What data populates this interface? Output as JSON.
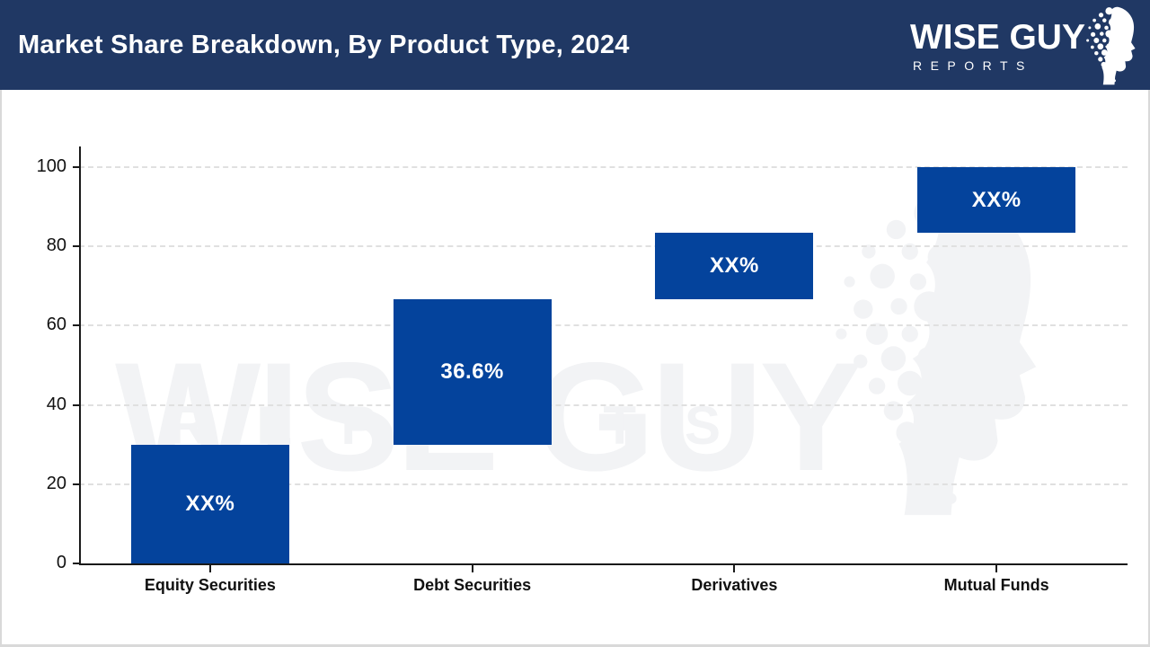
{
  "header": {
    "title": "Market Share Breakdown, By Product Type, 2024",
    "logo": {
      "line1": "WISE GUY",
      "line2": "REPORTS"
    }
  },
  "watermark": {
    "line1": "WISE GUY",
    "line2": "REPORTS"
  },
  "colors": {
    "header_bg": "#203864",
    "bar": "#04439C",
    "bar_label": "#ffffff",
    "grid": "#e0e0e0",
    "axis": "#1a1a1a",
    "tick_label": "#111111",
    "watermark": "#f2f3f5",
    "frame_border": "#d9d9d9"
  },
  "chart_data": {
    "type": "bar",
    "variant": "floating-waterfall",
    "title": "Market Share Breakdown, By Product Type, 2024",
    "categories": [
      "Equity Securities",
      "Debt Securities",
      "Derivatives",
      "Mutual Funds"
    ],
    "bars": [
      {
        "category": "Equity Securities",
        "start": 0,
        "end": 30,
        "value_label": "XX%"
      },
      {
        "category": "Debt Securities",
        "start": 30,
        "end": 66.6,
        "value_label": "36.6%"
      },
      {
        "category": "Derivatives",
        "start": 66.6,
        "end": 83.4,
        "value_label": "XX%"
      },
      {
        "category": "Mutual Funds",
        "start": 83.4,
        "end": 100,
        "value_label": "XX%"
      }
    ],
    "ylim": [
      0,
      100
    ],
    "yticks": [
      0,
      20,
      40,
      60,
      80,
      100
    ],
    "xlabel": "",
    "ylabel": "",
    "grid": {
      "horizontal": true,
      "style": "dashed"
    },
    "legend": "none"
  }
}
